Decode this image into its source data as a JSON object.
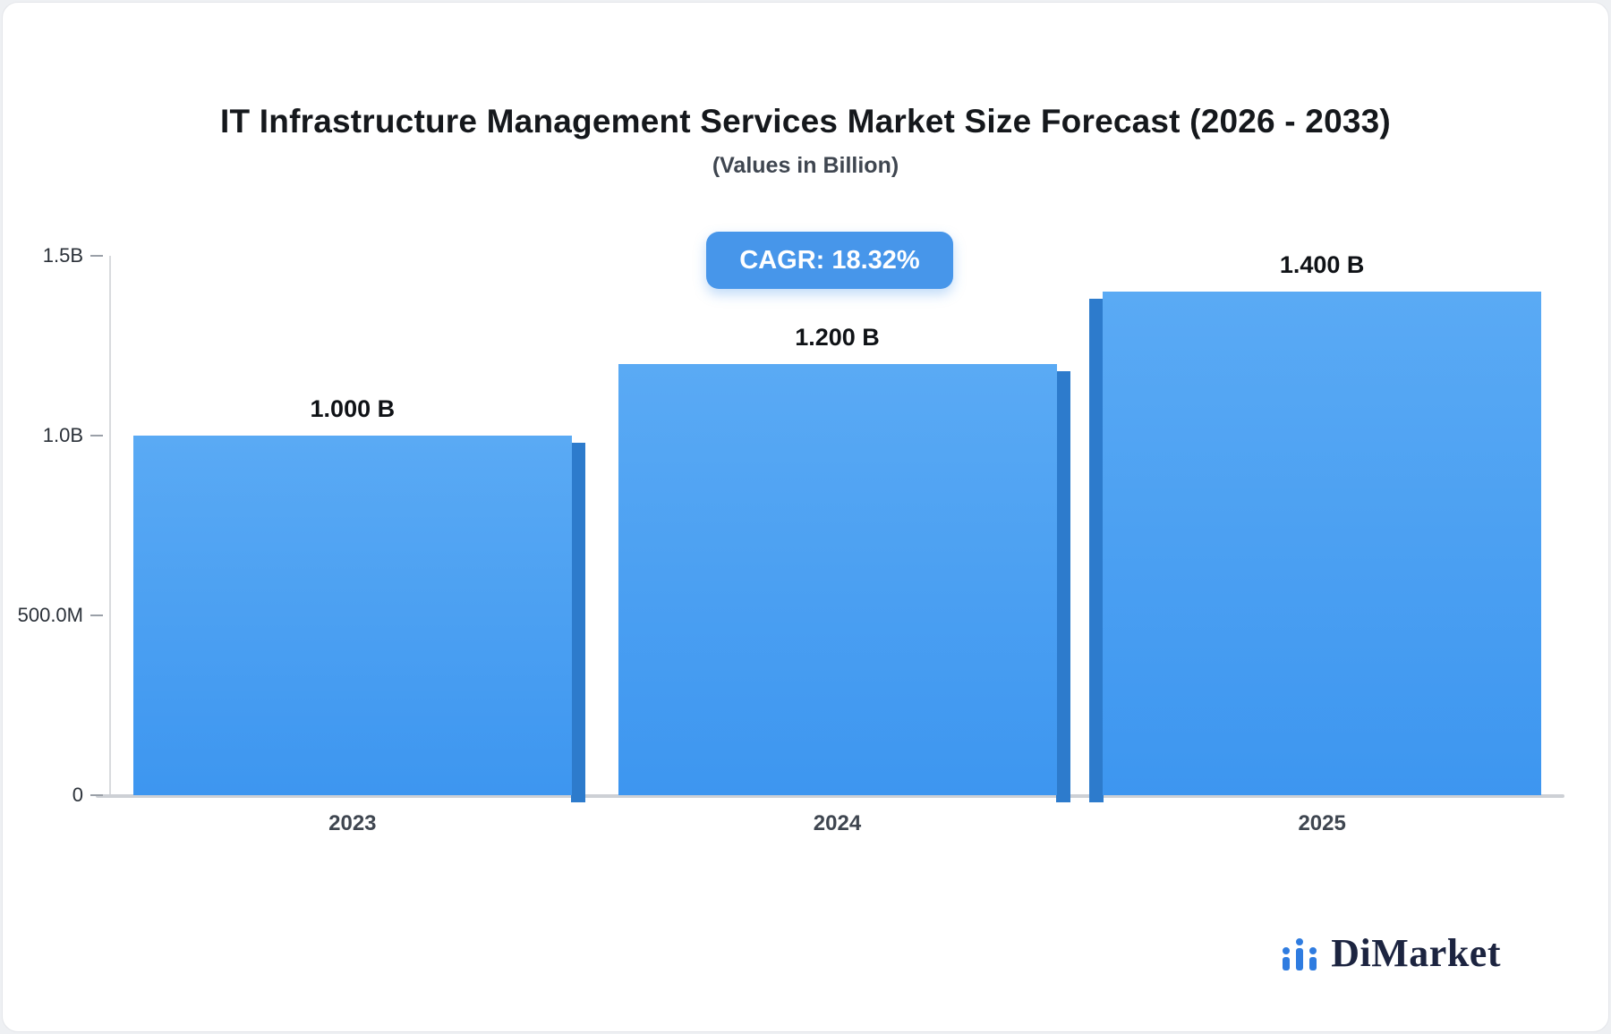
{
  "chart_data": {
    "type": "bar",
    "title": "IT Infrastructure Management Services Market Size Forecast (2026 - 2033)",
    "subtitle": "(Values in Billion)",
    "cagr_label": "CAGR: 18.32%",
    "categories": [
      "2023",
      "2024",
      "2025"
    ],
    "values": [
      1.0,
      1.2,
      1.4
    ],
    "value_labels": [
      "1.000 B",
      "1.200 B",
      "1.400 B"
    ],
    "ylabel": "",
    "xlabel": "",
    "ylim": [
      0,
      1.5
    ],
    "yticks": [
      {
        "value": 0,
        "label": "0"
      },
      {
        "value": 0.5,
        "label": "500.0M"
      },
      {
        "value": 1.0,
        "label": "1.0B"
      },
      {
        "value": 1.5,
        "label": "1.5B"
      }
    ],
    "grid": "off",
    "legend": "none",
    "colors": {
      "bar_top": "#5aaaf4",
      "bar_bottom": "#3d96f0",
      "bar_edge": "#2d7bcc",
      "accent": "#4796ea"
    }
  },
  "branding": {
    "logo_text": "DiMarket",
    "logo_text_color": "#1c2440",
    "logo_icon_color": "#2f7ce0"
  }
}
